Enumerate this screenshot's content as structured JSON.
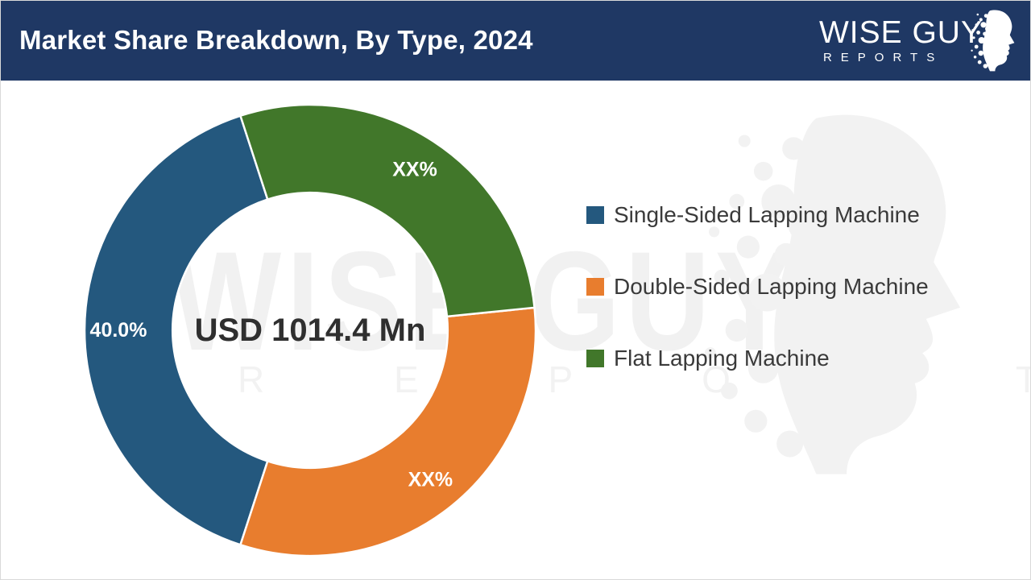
{
  "header": {
    "title": "Market Share Breakdown, By Type, 2024",
    "bg_color": "#1f3864",
    "logo": {
      "line1": "WISE GUY",
      "line2": "REPORTS"
    }
  },
  "watermark": {
    "line1": "WISE GUY",
    "line2": "R E P O R T S"
  },
  "chart_data": {
    "type": "donut",
    "title": "Market Share Breakdown, By Type, 2024",
    "center_label": "USD 1014.4 Mn",
    "start_angle_deg": 108,
    "direction": "counterclockwise",
    "donut_hole_ratio": 0.61,
    "legend_position": "right",
    "segments": [
      {
        "name": "Single-Sided Lapping Machine",
        "label": "40.0%",
        "value_pct": 40.0,
        "color": "#24587e"
      },
      {
        "name": "Double-Sided Lapping Machine",
        "label": "XX%",
        "value_pct": 31.6,
        "color": "#e87d2e"
      },
      {
        "name": "Flat Lapping Machine",
        "label": "XX%",
        "value_pct": 28.4,
        "color": "#41772a"
      }
    ],
    "label_color": "#ffffff",
    "center_label_color": "#2f2f2f"
  }
}
